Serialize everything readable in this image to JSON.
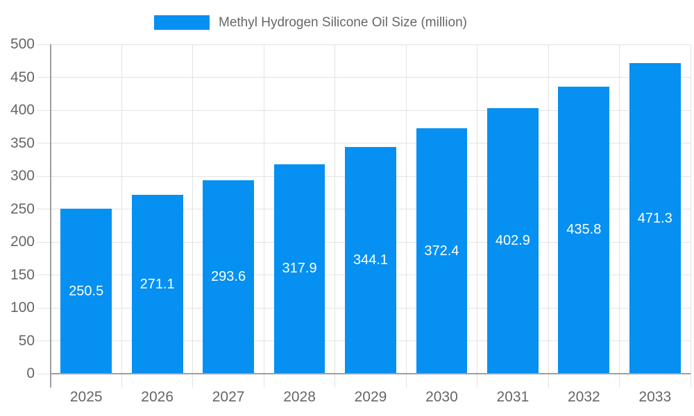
{
  "chart_data": {
    "type": "bar",
    "title": "Methyl Hydrogen Silicone Oil Size (million)",
    "series_name": "Methyl Hydrogen Silicone Oil Size (million)",
    "categories": [
      "2025",
      "2026",
      "2027",
      "2028",
      "2029",
      "2030",
      "2031",
      "2032",
      "2033"
    ],
    "values": [
      250.5,
      271.1,
      293.6,
      317.9,
      344.1,
      372.4,
      402.9,
      435.8,
      471.3
    ],
    "xlabel": "",
    "ylabel": "",
    "ylim": [
      0,
      500
    ],
    "yticks": [
      0,
      50,
      100,
      150,
      200,
      250,
      300,
      350,
      400,
      450,
      500
    ],
    "grid": true,
    "legend_position": "top",
    "value_labels_visible": true,
    "colors": {
      "bar": "#0590f2",
      "value_label": "#ffffff",
      "tick_text": "#666666",
      "legend_text": "#666666",
      "grid_line": "#e3e3e3",
      "axis_line": "#9e9e9e",
      "background": "#ffffff"
    }
  }
}
